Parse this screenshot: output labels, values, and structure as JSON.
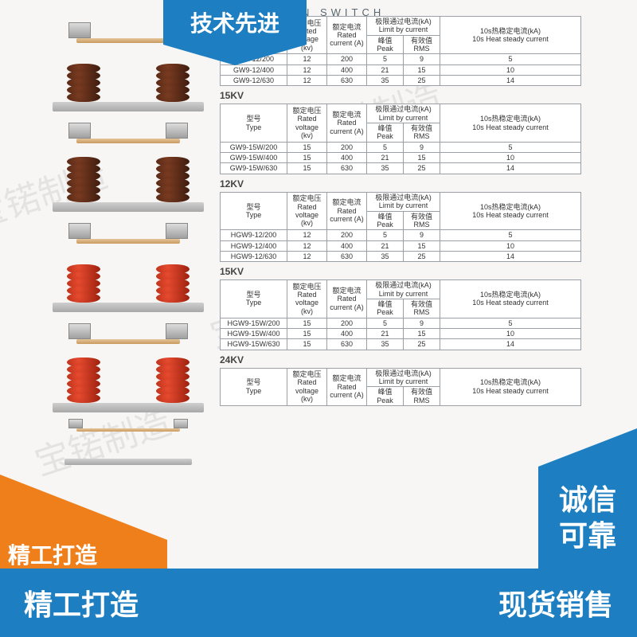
{
  "header_fragment": "ISOLATION SWITCH",
  "badges": {
    "tech": "技术先进",
    "trust_l1": "诚信",
    "trust_l2": "可靠",
    "quality": "精工打造"
  },
  "footer": {
    "left": "精工打造",
    "right": "现货销售"
  },
  "watermark": "宝锘制造",
  "headers": {
    "type_cn": "型号",
    "type_en": "Type",
    "voltage_cn": "额定电压",
    "voltage_en": "Rated voltage (kv)",
    "current_cn": "额定电流",
    "current_en": "Rated current (A)",
    "limit_cn": "极限通过电流(kA)",
    "limit_en": "Limit by current",
    "peak_cn": "峰值",
    "peak_en": "Peak",
    "rms_cn": "有效值",
    "rms_en": "RMS",
    "heat_cn": "10s热稳定电流(kA)",
    "heat_en": "10s Heat steady current"
  },
  "sections": [
    {
      "label": "",
      "img": {
        "color": "brown",
        "discs": 5
      },
      "rows": [
        {
          "type": "GW9-12/200",
          "v": "12",
          "a": "200",
          "peak": "5",
          "rms": "9",
          "heat": "5"
        },
        {
          "type": "GW9-12/400",
          "v": "12",
          "a": "400",
          "peak": "21",
          "rms": "15",
          "heat": "10"
        },
        {
          "type": "GW9-12/630",
          "v": "12",
          "a": "630",
          "peak": "35",
          "rms": "25",
          "heat": "14"
        }
      ]
    },
    {
      "label": "15KV",
      "img": {
        "color": "brown",
        "discs": 6
      },
      "rows": [
        {
          "type": "GW9-15W/200",
          "v": "15",
          "a": "200",
          "peak": "5",
          "rms": "9",
          "heat": "5"
        },
        {
          "type": "GW9-15W/400",
          "v": "15",
          "a": "400",
          "peak": "21",
          "rms": "15",
          "heat": "10"
        },
        {
          "type": "GW9-15W/630",
          "v": "15",
          "a": "630",
          "peak": "35",
          "rms": "25",
          "heat": "14"
        }
      ]
    },
    {
      "label": "12KV",
      "img": {
        "color": "red",
        "discs": 5
      },
      "rows": [
        {
          "type": "HGW9-12/200",
          "v": "12",
          "a": "200",
          "peak": "5",
          "rms": "9",
          "heat": "5"
        },
        {
          "type": "HGW9-12/400",
          "v": "12",
          "a": "400",
          "peak": "21",
          "rms": "15",
          "heat": "10"
        },
        {
          "type": "HGW9-12/630",
          "v": "12",
          "a": "630",
          "peak": "35",
          "rms": "25",
          "heat": "14"
        }
      ]
    },
    {
      "label": "15KV",
      "img": {
        "color": "red",
        "discs": 6
      },
      "rows": [
        {
          "type": "HGW9-15W/200",
          "v": "15",
          "a": "200",
          "peak": "5",
          "rms": "9",
          "heat": "5"
        },
        {
          "type": "HGW9-15W/400",
          "v": "15",
          "a": "400",
          "peak": "21",
          "rms": "15",
          "heat": "10"
        },
        {
          "type": "HGW9-15W/630",
          "v": "15",
          "a": "630",
          "peak": "35",
          "rms": "25",
          "heat": "14"
        }
      ]
    },
    {
      "label": "24KV",
      "img": {
        "color": "none",
        "discs": 0,
        "tiny": true
      },
      "rows": []
    }
  ],
  "colors": {
    "blue": "#1d7fc1",
    "orange": "#ef7f1a",
    "brown": "#3c1b0e",
    "red": "#9a1f0d",
    "border": "#9aa0a6",
    "bg": "#f7f6f4"
  }
}
